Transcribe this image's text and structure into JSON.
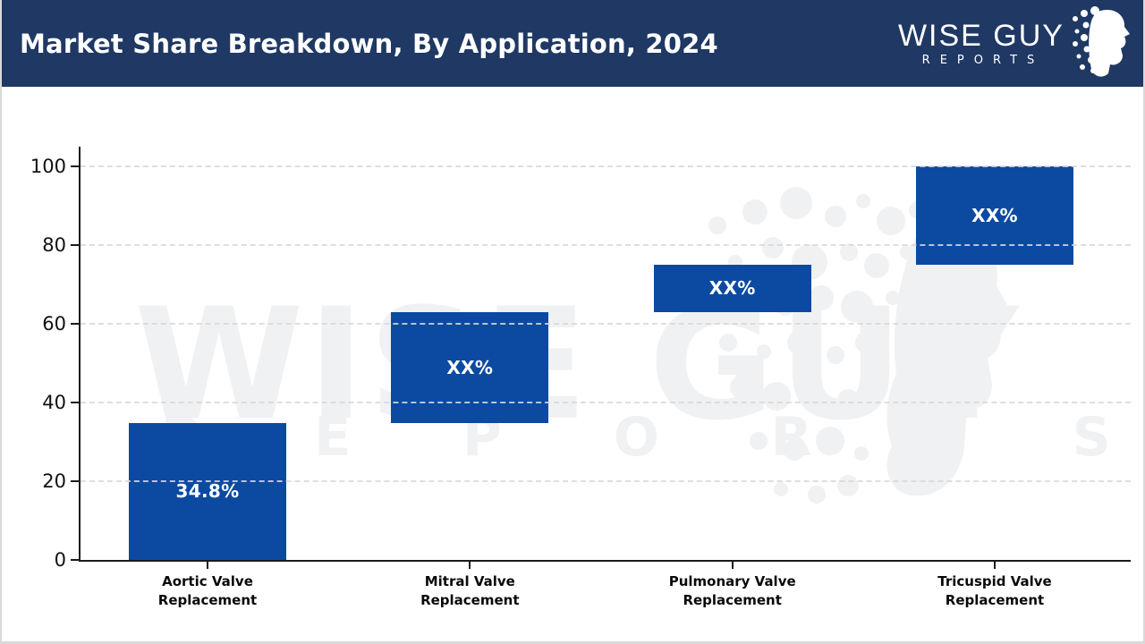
{
  "header": {
    "title": "Market Share Breakdown, By Application, 2024"
  },
  "logo": {
    "wordmark": "WISE GUY",
    "sub": "REPORTS"
  },
  "watermark": {
    "wordmark": "WISE GUY",
    "sub": "R E P O R T S"
  },
  "colors": {
    "header_bg": "#1f3864",
    "bar_fill": "#0c4aa2",
    "grid": "#d9d9d9",
    "watermark": "#f0f1f3",
    "axis": "#1a1a1a",
    "bar_label": "#ffffff"
  },
  "chart_data": {
    "type": "bar",
    "subtype": "waterfall",
    "title": "Market Share Breakdown, By Application, 2024",
    "xlabel": "",
    "ylabel": "",
    "ylim": [
      0,
      100
    ],
    "yticks": [
      0,
      20,
      40,
      60,
      80,
      100
    ],
    "grid": "dashed-horizontal",
    "categories": [
      "Aortic Valve Replacement",
      "Mitral Valve Replacement",
      "Pulmonary Valve Replacement",
      "Tricuspid Valve Replacement"
    ],
    "segments": [
      {
        "category": "Aortic Valve Replacement",
        "label": "34.8%",
        "start": 0,
        "end": 34.8
      },
      {
        "category": "Mitral Valve Replacement",
        "label": "XX%",
        "start": 34.8,
        "end": 63
      },
      {
        "category": "Pulmonary Valve Replacement",
        "label": "XX%",
        "start": 63,
        "end": 75
      },
      {
        "category": "Tricuspid Valve Replacement",
        "label": "XX%",
        "start": 75,
        "end": 100
      }
    ]
  }
}
